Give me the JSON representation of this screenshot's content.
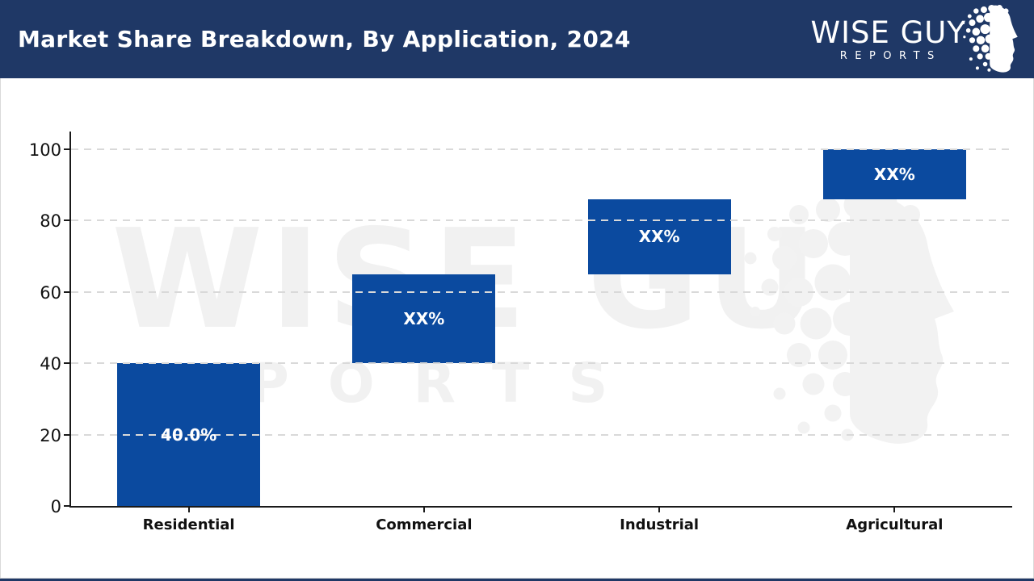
{
  "header": {
    "title": "Market Share Breakdown, By Application, 2024",
    "logo": {
      "line1": "WISE GUY",
      "line2": "REPORTS"
    }
  },
  "watermark": {
    "line1": "WISE GU",
    "line2": "PORTS"
  },
  "colors": {
    "header_bg": "#1f3866",
    "bar": "#0b4a9f",
    "grid": "#d9d9d9",
    "axis": "#1a1a1a",
    "bar_label": "#ffffff",
    "watermark": "#f1f1f1"
  },
  "chart_data": {
    "type": "bar",
    "subtype": "waterfall",
    "title": "Market Share Breakdown, By Application, 2024",
    "categories": [
      "Residential",
      "Commercial",
      "Industrial",
      "Agricultural"
    ],
    "series": [
      {
        "name": "Market Share",
        "segments": [
          {
            "category": "Residential",
            "start": 0,
            "end": 40,
            "label": "40.0%"
          },
          {
            "category": "Commercial",
            "start": 40,
            "end": 65,
            "label": "XX%"
          },
          {
            "category": "Industrial",
            "start": 65,
            "end": 86,
            "label": "XX%"
          },
          {
            "category": "Agricultural",
            "start": 86,
            "end": 100,
            "label": "XX%"
          }
        ]
      }
    ],
    "xlabel": "",
    "ylabel": "",
    "yticks": [
      0,
      20,
      40,
      60,
      80,
      100
    ],
    "ylim": [
      0,
      105
    ],
    "grid": "dashed-horizontal",
    "legend": false,
    "bar_color": "#0b4a9f"
  }
}
